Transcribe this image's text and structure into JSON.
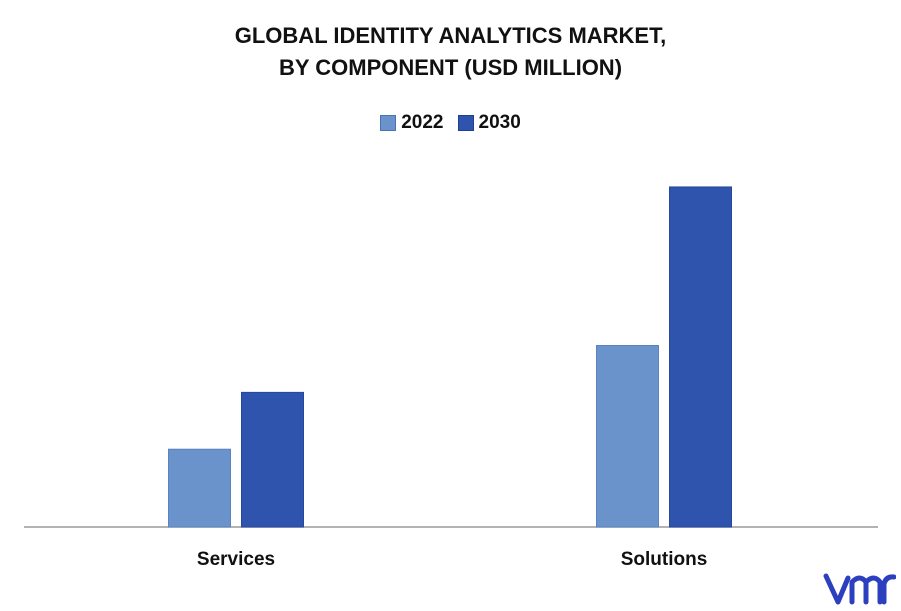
{
  "chart_data": {
    "type": "bar",
    "title_lines": [
      "GLOBAL IDENTITY ANALYTICS MARKET,",
      "BY COMPONENT (USD MILLION)"
    ],
    "categories": [
      "Services",
      "Solutions"
    ],
    "series": [
      {
        "name": "2022",
        "values": [
          78,
          182
        ],
        "color": "#6a93cc"
      },
      {
        "name": "2030",
        "values": [
          135,
          341
        ],
        "color": "#2e54ae"
      }
    ],
    "xlabel": "",
    "ylabel": "",
    "ylim": [
      0,
      360
    ],
    "grid": false,
    "legend_position": "top-center"
  },
  "logo": {
    "icon": "vmr-logo-icon",
    "color": "#2c3fbf"
  }
}
